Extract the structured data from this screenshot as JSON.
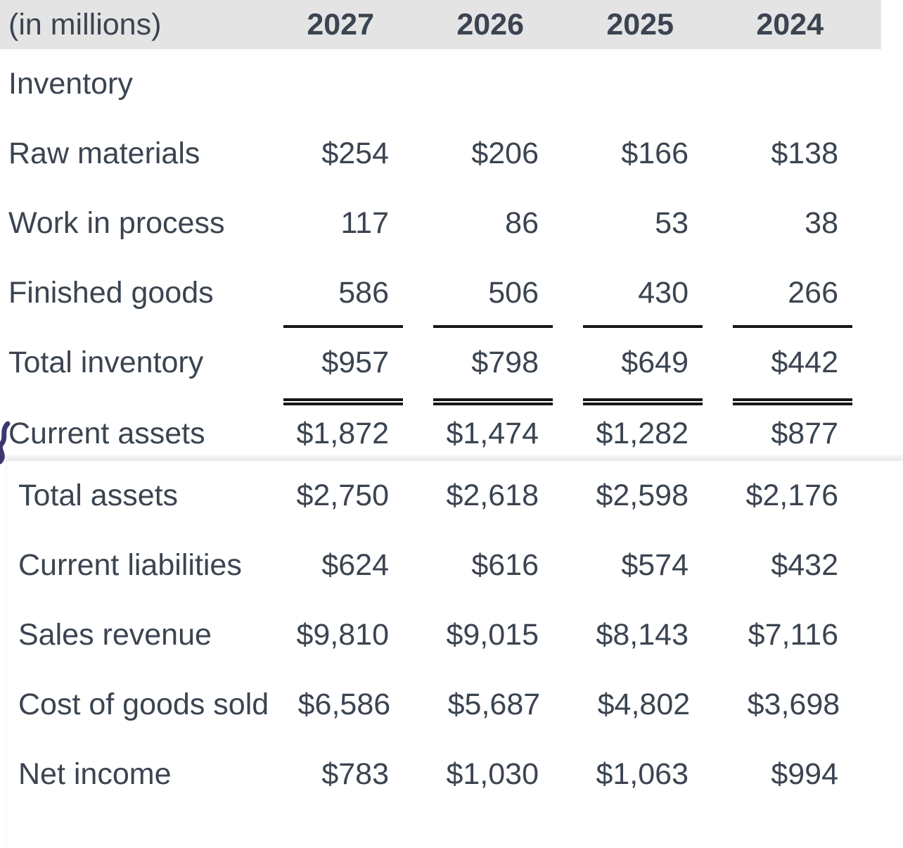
{
  "header": {
    "units_label": "(in millions)",
    "years": [
      "2027",
      "2026",
      "2025",
      "2024"
    ]
  },
  "upper_rows": [
    {
      "label": "Inventory",
      "values": [
        "",
        "",
        "",
        ""
      ],
      "underline_below": "none"
    },
    {
      "label": "Raw materials",
      "values": [
        "$254",
        "$206",
        "$166",
        "$138"
      ],
      "underline_below": "none"
    },
    {
      "label": "Work in process",
      "values": [
        "117",
        "86",
        "53",
        "38"
      ],
      "underline_below": "none"
    },
    {
      "label": "Finished goods",
      "values": [
        "586",
        "506",
        "430",
        "266"
      ],
      "underline_below": "single"
    },
    {
      "label": "Total inventory",
      "values": [
        "$957",
        "$798",
        "$649",
        "$442"
      ],
      "underline_below": "double"
    },
    {
      "label": "Current assets",
      "values": [
        "$1,872",
        "$1,474",
        "$1,282",
        "$877"
      ],
      "underline_below": "none"
    }
  ],
  "lower_rows": [
    {
      "label": "Total assets",
      "values": [
        "$2,750",
        "$2,618",
        "$2,598",
        "$2,176"
      ]
    },
    {
      "label": "Current liabilities",
      "values": [
        "$624",
        "$616",
        "$574",
        "$432"
      ]
    },
    {
      "label": "Sales revenue",
      "values": [
        "$9,810",
        "$9,015",
        "$8,143",
        "$7,116"
      ]
    },
    {
      "label": "Cost of goods sold",
      "values": [
        "$6,586",
        "$5,687",
        "$4,802",
        "$3,698"
      ]
    },
    {
      "label": "Net income",
      "values": [
        "$783",
        "$1,030",
        "$1,063",
        "$994"
      ]
    }
  ],
  "colors": {
    "text": "#3b4450",
    "header_background": "#e4e4e4",
    "rule": "#161616",
    "divider": "#f3f3f5",
    "annotation": "#3e3670"
  },
  "annotation": {
    "name": "purple-squiggle"
  }
}
